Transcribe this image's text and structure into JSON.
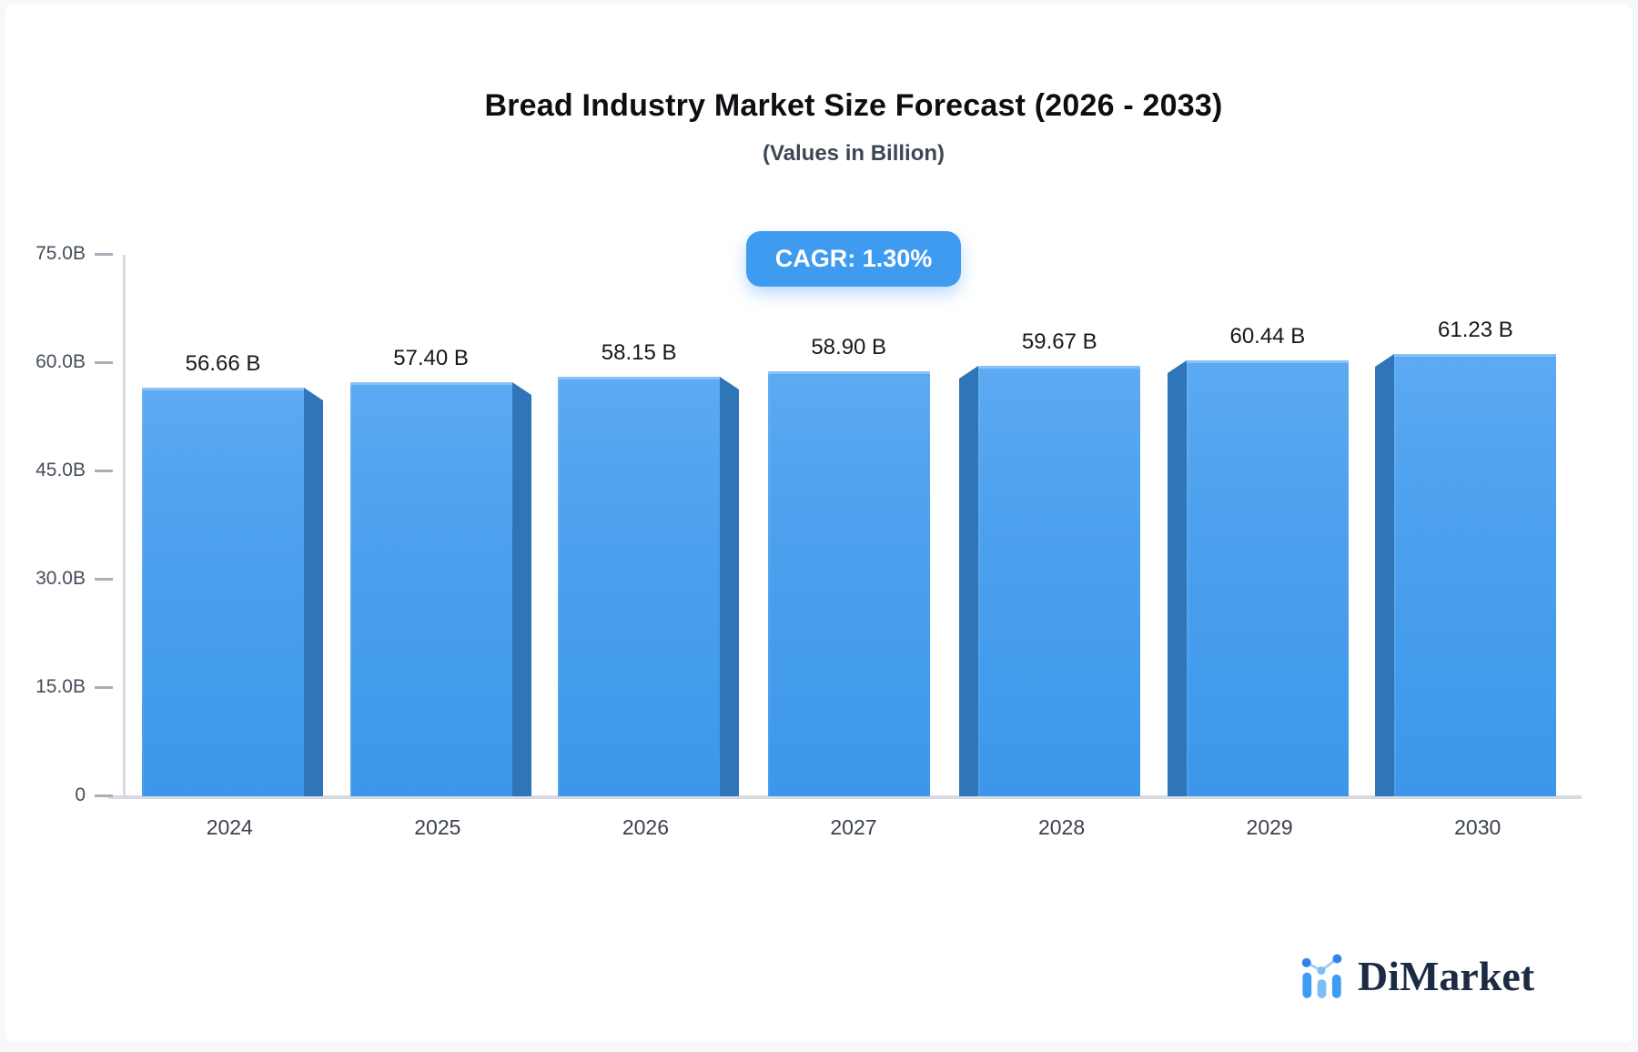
{
  "page": {
    "background": "#f6f8fa",
    "card_background": "#ffffff"
  },
  "header": {
    "title": "Bread Industry Market Size Forecast (2026 - 2033)",
    "subtitle": "(Values in Billion)"
  },
  "badge": {
    "label": "CAGR: 1.30%",
    "background": "#3e9bf0",
    "text_color": "#ffffff"
  },
  "chart_data": {
    "type": "bar",
    "title": "Bread Industry Market Size Forecast (2026 - 2033)",
    "subtitle": "(Values in Billion)",
    "categories": [
      "2024",
      "2025",
      "2026",
      "2027",
      "2028",
      "2029",
      "2030"
    ],
    "values": [
      56.66,
      57.4,
      58.15,
      58.9,
      59.67,
      60.44,
      61.23
    ],
    "value_labels": [
      "56.66 B",
      "57.40 B",
      "58.15 B",
      "58.90 B",
      "59.67 B",
      "60.44 B",
      "61.23 B"
    ],
    "xlabel": "",
    "ylabel": "",
    "ylim": [
      0,
      75
    ],
    "yticks": [
      0,
      15,
      30,
      45,
      60,
      75
    ],
    "ytick_labels": [
      "0",
      "15.0B",
      "30.0B",
      "45.0B",
      "60.0B",
      "75.0B"
    ],
    "grid": false,
    "legend": null,
    "bar_face_color_top": "#5caaf2",
    "bar_face_color_bottom": "#3c97ea",
    "bar_side_color": "#2e76b8",
    "axis_line_color": "#d7dbe1",
    "tick_color": "#a9afb9"
  },
  "logo": {
    "text": "DiMarket",
    "color": "#1c2a44",
    "icon": "mini-bar-chart-icon",
    "icon_primary_color": "#2f86ea",
    "icon_light_color": "#7abdf8"
  }
}
